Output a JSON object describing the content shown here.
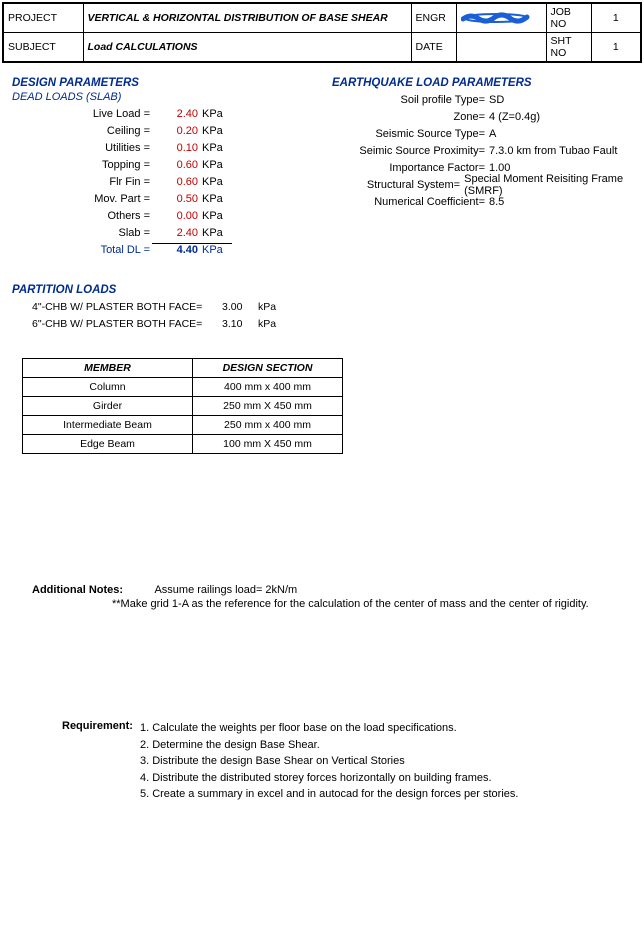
{
  "header": {
    "project_label": "PROJECT",
    "project_value": "VERTICAL & HORIZONTAL DISTRIBUTION OF BASE SHEAR",
    "subject_label": "SUBJECT",
    "subject_value": "Load CALCULATIONS",
    "engr_label": "ENGR",
    "date_label": "DATE",
    "date_value": "",
    "jobno_label": "JOB NO",
    "jobno_value": "1",
    "shtno_label": "SHT NO",
    "shtno_value": "1"
  },
  "design_params_heading": "DESIGN PARAMETERS",
  "dead_loads_heading": "DEAD LOADS (SLAB)",
  "dead_loads": [
    {
      "label": "Live Load =",
      "value": "2.40",
      "unit": "KPa"
    },
    {
      "label": "Ceiling =",
      "value": "0.20",
      "unit": "KPa"
    },
    {
      "label": "Utilities =",
      "value": "0.10",
      "unit": "KPa"
    },
    {
      "label": "Topping =",
      "value": "0.60",
      "unit": "KPa"
    },
    {
      "label": "Flr Fin =",
      "value": "0.60",
      "unit": "KPa"
    },
    {
      "label": "Mov. Part =",
      "value": "0.50",
      "unit": "KPa"
    },
    {
      "label": "Others =",
      "value": "0.00",
      "unit": "KPa"
    },
    {
      "label": "Slab =",
      "value": "2.40",
      "unit": "KPa"
    }
  ],
  "dead_total": {
    "label": "Total DL =",
    "value": "4.40",
    "unit": "KPa"
  },
  "eq_heading": "EARTHQUAKE LOAD  PARAMETERS",
  "eq_params": [
    {
      "label": "Soil profile Type=",
      "value": "SD"
    },
    {
      "label": "Zone=",
      "value": "4 (Z=0.4g)"
    },
    {
      "label": "Seismic Source Type=",
      "value": "A"
    },
    {
      "label": "Seimic Source Proximity=",
      "value": "7.3.0 km from Tubao Fault"
    },
    {
      "label": "Importance Factor=",
      "value": "1.00"
    },
    {
      "label": "Structural System=",
      "value": "Special Moment Reisiting Frame (SMRF)"
    },
    {
      "label": "Numerical Coefficient=",
      "value": "8.5"
    }
  ],
  "partition_heading": "PARTITION LOADS",
  "partitions": [
    {
      "label": "4\"-CHB W/ PLASTER BOTH FACE=",
      "value": "3.00",
      "unit": "kPa"
    },
    {
      "label": "6\"-CHB W/ PLASTER BOTH FACE=",
      "value": "3.10",
      "unit": "kPa"
    }
  ],
  "member_table": {
    "headers": [
      "MEMBER",
      "DESIGN SECTION"
    ],
    "rows": [
      [
        "Column",
        "400 mm x 400 mm"
      ],
      [
        "Girder",
        "250 mm X 450 mm"
      ],
      [
        "Intermediate Beam",
        "250 mm x 400 mm"
      ],
      [
        "Edge Beam",
        "100 mm X 450 mm"
      ]
    ],
    "col_widths": [
      "170px",
      "150px"
    ]
  },
  "notes": {
    "label": "Additional Notes:",
    "line1": "Assume railings load= 2kN/m",
    "line2": "**Make grid 1-A as the reference for the calculation of the center of mass and the center of rigidity."
  },
  "requirement": {
    "label": "Requirement:",
    "items": [
      "1. Calculate the weights per floor base on the load specifications.",
      "2. Determine the design Base Shear.",
      "3. Distribute the design Base Shear on Vertical Stories",
      "4. Distribute the distributed storey forces horizontally on building frames.",
      "5. Create a summary in excel and in autocad for the design forces per stories."
    ]
  },
  "colors": {
    "blue": "#002b8f",
    "red": "#c00000",
    "scribble": "#1a5fd6"
  }
}
